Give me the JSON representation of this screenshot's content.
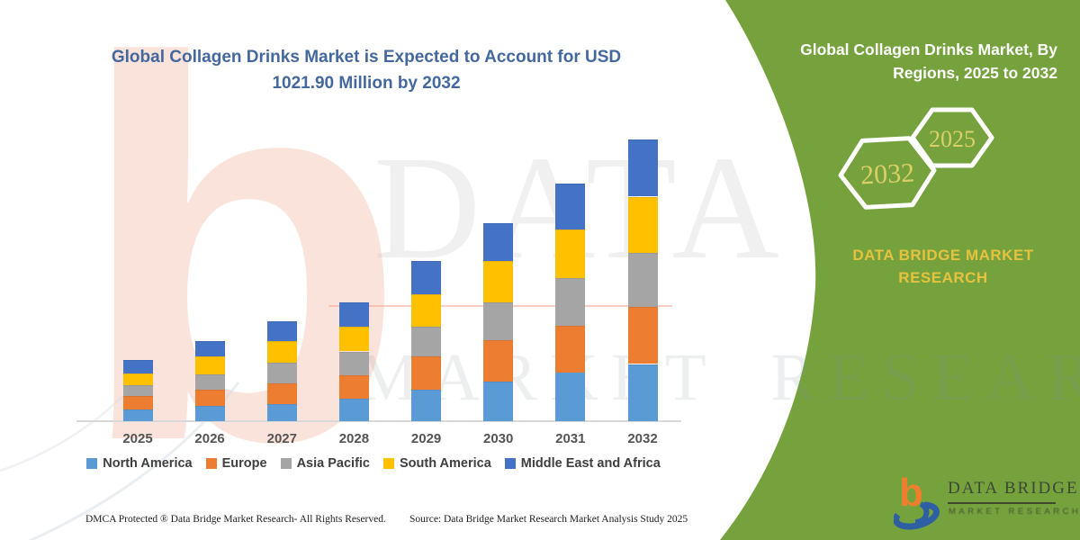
{
  "title": "Global Collagen Drinks Market is Expected to Account for USD 1021.90 Million by 2032",
  "chart_data": {
    "type": "bar",
    "stacked": true,
    "unit": "USD Million",
    "title": "Global Collagen Drinks Market is Expected to Account for USD 1021.90 Million by 2032",
    "categories": [
      "2025",
      "2026",
      "2027",
      "2028",
      "2029",
      "2030",
      "2031",
      "2032"
    ],
    "series": [
      {
        "name": "North America",
        "color": "#5B9BD5",
        "values": [
          41,
          55,
          62,
          81,
          114,
          145,
          178,
          207
        ]
      },
      {
        "name": "Europe",
        "color": "#ED7D31",
        "values": [
          49,
          60,
          76,
          87,
          120,
          149,
          168,
          207
        ]
      },
      {
        "name": "Asia Pacific",
        "color": "#A5A5A5",
        "values": [
          40,
          55,
          74,
          85,
          109,
          136,
          174,
          197
        ]
      },
      {
        "name": "South America",
        "color": "#FFC000",
        "values": [
          43,
          65,
          78,
          90,
          116,
          150,
          176,
          203
        ]
      },
      {
        "name": "Middle East and Africa",
        "color": "#4472C4",
        "values": [
          49,
          55,
          72,
          89,
          121,
          139,
          167,
          207
        ]
      }
    ],
    "totals_by_year": [
      222,
      290,
      362,
      432,
      580,
      719,
      863,
      1021.9
    ],
    "highlight_value_2032": "USD 1021.90 Million",
    "ylim": [
      0,
      1100
    ],
    "grid": false,
    "legend_position": "bottom"
  },
  "sidebar": {
    "bg_color": "#76A23E",
    "heading": "Global Collagen Drinks Market, By Regions, 2025 to 2032",
    "hexagons": [
      {
        "label": "2032"
      },
      {
        "label": "2025"
      }
    ],
    "brand": "DATA BRIDGE MARKET RESEARCH",
    "logo": {
      "name": "DATA BRIDGE",
      "sub": "MARKET RESEARCH"
    }
  },
  "watermarks": {
    "letter": "b",
    "big_text": "DATA B",
    "sub_text": "MARKET RESEARCH"
  },
  "footer": {
    "dmca": "DMCA Protected ® Data Bridge Market Research-  All Rights Reserved.",
    "source": "Source: Data Bridge Market Research  Market Analysis Study 2025"
  }
}
